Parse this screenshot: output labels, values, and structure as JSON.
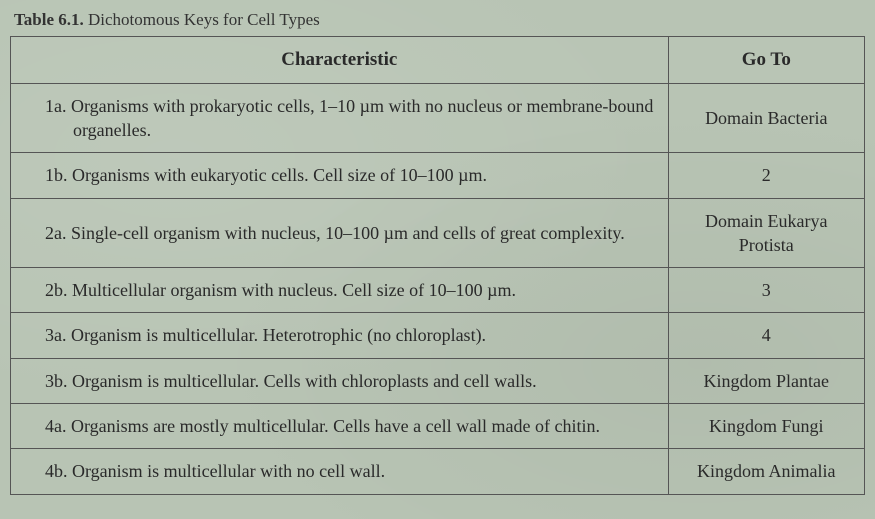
{
  "caption": {
    "label": "Table 6.1.",
    "title": "Dichotomous Keys for Cell Types"
  },
  "headers": {
    "characteristic": "Characteristic",
    "goto": "Go To"
  },
  "rows": [
    {
      "char": "1a. Organisms with prokaryotic cells, 1–10 µm with no nucleus or membrane-bound organelles.",
      "goto": "Domain Bacteria"
    },
    {
      "char": "1b. Organisms with eukaryotic cells. Cell size of 10–100 µm.",
      "goto": "2"
    },
    {
      "char": "2a. Single-cell organism with nucleus, 10–100 µm and cells of great complexity.",
      "goto": "Domain Eukarya Protista"
    },
    {
      "char": "2b. Multicellular organism with nucleus. Cell size of 10–100 µm.",
      "goto": "3"
    },
    {
      "char": "3a. Organism is multicellular. Heterotrophic (no chloroplast).",
      "goto": "4"
    },
    {
      "char": "3b. Organism is multicellular. Cells with chloroplasts and cell walls.",
      "goto": "Kingdom Plantae"
    },
    {
      "char": "4a. Organisms are mostly multicellular. Cells have a cell wall made of chitin.",
      "goto": "Kingdom Fungi"
    },
    {
      "char": "4b. Organism is multicellular with no cell wall.",
      "goto": "Kingdom Animalia"
    }
  ],
  "style": {
    "background_color": "#b8c4b4",
    "border_color": "#555555",
    "text_color": "#2a2a2a",
    "font_family": "Georgia, serif",
    "caption_fontsize": 17,
    "header_fontsize": 19,
    "cell_fontsize": 18,
    "col_widths_pct": [
      77,
      23
    ]
  }
}
